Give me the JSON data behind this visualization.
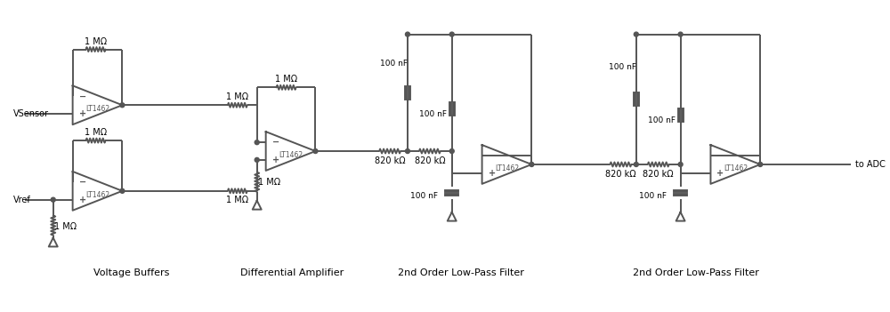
{
  "bg_color": "#ffffff",
  "line_color": "#555555",
  "text_color": "#000000",
  "lw": 1.4,
  "labels": {
    "vsensor": "VSensor",
    "vref": "Vref",
    "voltage_buffers": "Voltage Buffers",
    "diff_amp": "Differential Amplifier",
    "lpf1": "2nd Order Low-Pass Filter",
    "lpf2": "2nd Order Low-Pass Filter",
    "to_adc": "to ADC",
    "lt1462": "LT1462",
    "r1M": "1 MΩ",
    "r820k": "820 kΩ",
    "c100n": "100 nF"
  }
}
